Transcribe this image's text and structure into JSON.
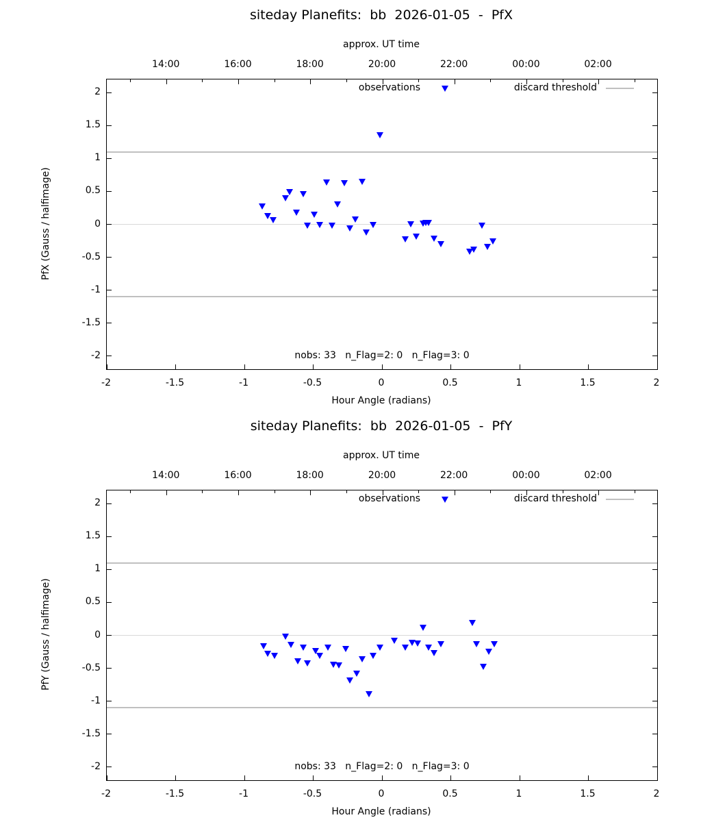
{
  "colors": {
    "background": "#ffffff",
    "marker_blue": "#0000ff",
    "threshold_gray": "#c0c0c0",
    "zero_line_gray": "#d8d8d8",
    "axis_black": "#000000"
  },
  "charts": [
    {
      "title": "siteday Planefits:  bb  2026-01-05  -  PfX",
      "top_axis_label": "approx. UT time",
      "top_ticks": [
        "14:00",
        "16:00",
        "18:00",
        "20:00",
        "22:00",
        "00:00",
        "02:00"
      ],
      "y_ticks": [
        "2",
        "1.5",
        "1",
        "0.5",
        "0",
        "-0.5",
        "-1",
        "-1.5",
        "-2"
      ],
      "x_ticks": [
        "-2",
        "-1.5",
        "-1",
        "-0.5",
        "0",
        "0.5",
        "1",
        "1.5",
        "2"
      ],
      "ylabel": "PfX (Gauss / halfimage)",
      "xlabel": "Hour Angle (radians)",
      "legend_observations": "observations",
      "legend_threshold": "discard threshold",
      "stats_text": "nobs: 33   n_Flag=2: 0   n_Flag=3: 0"
    },
    {
      "title": "siteday Planefits:  bb  2026-01-05  -  PfY",
      "top_axis_label": "approx. UT time",
      "top_ticks": [
        "14:00",
        "16:00",
        "18:00",
        "20:00",
        "22:00",
        "00:00",
        "02:00"
      ],
      "y_ticks": [
        "2",
        "1.5",
        "1",
        "0.5",
        "0",
        "-0.5",
        "-1",
        "-1.5",
        "-2"
      ],
      "x_ticks": [
        "-2",
        "-1.5",
        "-1",
        "-0.5",
        "0",
        "0.5",
        "1",
        "1.5",
        "2"
      ],
      "ylabel": "PfY (Gauss / halfimage)",
      "xlabel": "Hour Angle (radians)",
      "legend_observations": "observations",
      "legend_threshold": "discard threshold",
      "stats_text": "nobs: 33   n_Flag=2: 0   n_Flag=3: 0"
    }
  ],
  "chart_data": [
    {
      "type": "scatter",
      "title": "siteday Planefits: bb 2026-01-05 - PfX",
      "xlabel": "Hour Angle (radians)",
      "ylabel": "PfX (Gauss / halfimage)",
      "xlim": [
        -2,
        2
      ],
      "ylim": [
        -2.2,
        2.2
      ],
      "grid": false,
      "legend_position": "top-inside",
      "x_tick_values": [
        -2,
        -1.5,
        -1,
        -0.5,
        0,
        0.5,
        1,
        1.5,
        2
      ],
      "y_tick_values": [
        2,
        1.5,
        1,
        0.5,
        0,
        -0.5,
        -1,
        -1.5,
        -2
      ],
      "x2_axis": {
        "label": "approx. UT time",
        "tick_labels": [
          "14:00",
          "16:00",
          "18:00",
          "20:00",
          "22:00",
          "00:00",
          "02:00"
        ],
        "tick_values": [
          -1.566,
          -1.042,
          -0.519,
          0.005,
          0.528,
          1.052,
          1.575
        ]
      },
      "zero_line": 0,
      "discard_thresholds": [
        1.1,
        -1.1
      ],
      "stats": {
        "nobs": 33,
        "n_flag2": 0,
        "n_flag3": 0
      },
      "series": [
        {
          "name": "observations",
          "marker": "triangle-down",
          "color": "#0000ff",
          "points": [
            [
              -0.87,
              0.27
            ],
            [
              -0.83,
              0.13
            ],
            [
              -0.79,
              0.06
            ],
            [
              -0.7,
              0.4
            ],
            [
              -0.67,
              0.49
            ],
            [
              -0.62,
              0.18
            ],
            [
              -0.57,
              0.46
            ],
            [
              -0.54,
              -0.02
            ],
            [
              -0.49,
              0.15
            ],
            [
              -0.45,
              -0.01
            ],
            [
              -0.4,
              0.63
            ],
            [
              -0.36,
              -0.02
            ],
            [
              -0.32,
              0.3
            ],
            [
              -0.27,
              0.62
            ],
            [
              -0.23,
              -0.06
            ],
            [
              -0.19,
              0.07
            ],
            [
              -0.14,
              0.65
            ],
            [
              -0.11,
              -0.13
            ],
            [
              -0.06,
              -0.01
            ],
            [
              -0.01,
              1.35
            ],
            [
              0.17,
              -0.23
            ],
            [
              0.21,
              0.0
            ],
            [
              0.25,
              -0.19
            ],
            [
              0.3,
              0.01
            ],
            [
              0.32,
              0.02
            ],
            [
              0.34,
              0.02
            ],
            [
              0.38,
              -0.22
            ],
            [
              0.43,
              -0.3
            ],
            [
              0.64,
              -0.42
            ],
            [
              0.67,
              -0.39
            ],
            [
              0.73,
              -0.02
            ],
            [
              0.77,
              -0.34
            ],
            [
              0.81,
              -0.26
            ]
          ]
        }
      ]
    },
    {
      "type": "scatter",
      "title": "siteday Planefits: bb 2026-01-05 - PfY",
      "xlabel": "Hour Angle (radians)",
      "ylabel": "PfY (Gauss / halfimage)",
      "xlim": [
        -2,
        2
      ],
      "ylim": [
        -2.2,
        2.2
      ],
      "grid": false,
      "legend_position": "top-inside",
      "x_tick_values": [
        -2,
        -1.5,
        -1,
        -0.5,
        0,
        0.5,
        1,
        1.5,
        2
      ],
      "y_tick_values": [
        2,
        1.5,
        1,
        0.5,
        0,
        -0.5,
        -1,
        -1.5,
        -2
      ],
      "x2_axis": {
        "label": "approx. UT time",
        "tick_labels": [
          "14:00",
          "16:00",
          "18:00",
          "20:00",
          "22:00",
          "00:00",
          "02:00"
        ],
        "tick_values": [
          -1.566,
          -1.042,
          -0.519,
          0.005,
          0.528,
          1.052,
          1.575
        ]
      },
      "zero_line": 0,
      "discard_thresholds": [
        1.1,
        -1.1
      ],
      "stats": {
        "nobs": 33,
        "n_flag2": 0,
        "n_flag3": 0
      },
      "series": [
        {
          "name": "observations",
          "marker": "triangle-down",
          "color": "#0000ff",
          "points": [
            [
              -0.86,
              -0.17
            ],
            [
              -0.83,
              -0.28
            ],
            [
              -0.78,
              -0.31
            ],
            [
              -0.7,
              -0.02
            ],
            [
              -0.66,
              -0.15
            ],
            [
              -0.61,
              -0.4
            ],
            [
              -0.57,
              -0.19
            ],
            [
              -0.54,
              -0.43
            ],
            [
              -0.48,
              -0.24
            ],
            [
              -0.45,
              -0.31
            ],
            [
              -0.39,
              -0.19
            ],
            [
              -0.35,
              -0.45
            ],
            [
              -0.31,
              -0.46
            ],
            [
              -0.26,
              -0.21
            ],
            [
              -0.23,
              -0.69
            ],
            [
              -0.18,
              -0.58
            ],
            [
              -0.14,
              -0.36
            ],
            [
              -0.09,
              -0.89
            ],
            [
              -0.06,
              -0.31
            ],
            [
              -0.01,
              -0.19
            ],
            [
              0.09,
              -0.08
            ],
            [
              0.17,
              -0.19
            ],
            [
              0.22,
              -0.11
            ],
            [
              0.26,
              -0.12
            ],
            [
              0.3,
              0.11
            ],
            [
              0.34,
              -0.19
            ],
            [
              0.38,
              -0.27
            ],
            [
              0.43,
              -0.14
            ],
            [
              0.66,
              0.19
            ],
            [
              0.69,
              -0.14
            ],
            [
              0.74,
              -0.48
            ],
            [
              0.78,
              -0.25
            ],
            [
              0.82,
              -0.14
            ]
          ]
        }
      ]
    }
  ]
}
